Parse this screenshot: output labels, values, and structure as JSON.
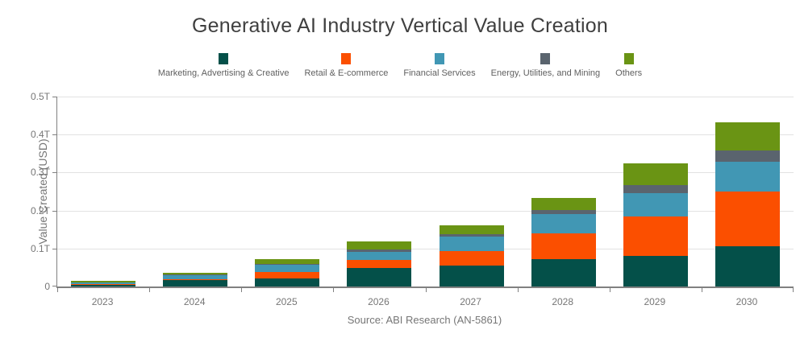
{
  "title": "Generative AI Industry Vertical Value Creation",
  "footer": "Source: ABI Research (AN-5861)",
  "colors": {
    "gridline": "#e2e2e2",
    "axis_line": "#808080",
    "title_text": "#3f3f3f",
    "axis_text": "#767676",
    "legend_text": "#5f5f5f"
  },
  "chart_data": {
    "type": "bar",
    "stacked": true,
    "title": "Generative AI Industry Vertical Value Creation",
    "xlabel": "",
    "ylabel": "Value Created (USD)",
    "unit": "trillion USD",
    "ylim": [
      0,
      0.5
    ],
    "grid": "horizontal",
    "legend_position": "top",
    "y_ticks": [
      "0",
      "0.1T",
      "0.2T",
      "0.3T",
      "0.4T",
      "0.5T"
    ],
    "y_tick_values": [
      0,
      0.1,
      0.2,
      0.3,
      0.4,
      0.5
    ],
    "categories": [
      "2023",
      "2024",
      "2025",
      "2026",
      "2027",
      "2028",
      "2029",
      "2030"
    ],
    "series": [
      {
        "name": "Marketing, Advertising & Creative",
        "color": "#045049",
        "values": [
          0.005,
          0.016,
          0.022,
          0.048,
          0.055,
          0.073,
          0.081,
          0.107
        ]
      },
      {
        "name": "Retail & E-commerce",
        "color": "#fb4f00",
        "values": [
          0.002,
          0.004,
          0.016,
          0.021,
          0.039,
          0.066,
          0.103,
          0.144
        ]
      },
      {
        "name": "Financial Services",
        "color": "#4197b4",
        "values": [
          0.003,
          0.009,
          0.019,
          0.023,
          0.037,
          0.052,
          0.061,
          0.078
        ]
      },
      {
        "name": "Energy, Utilities, and Mining",
        "color": "#5a646e",
        "values": [
          0.001,
          0.002,
          0.003,
          0.006,
          0.006,
          0.011,
          0.023,
          0.03
        ]
      },
      {
        "name": "Others",
        "color": "#6a9414",
        "values": [
          0.003,
          0.006,
          0.013,
          0.021,
          0.025,
          0.031,
          0.057,
          0.074
        ]
      }
    ],
    "totals": [
      0.014,
      0.037,
      0.073,
      0.119,
      0.162,
      0.233,
      0.325,
      0.433
    ]
  }
}
